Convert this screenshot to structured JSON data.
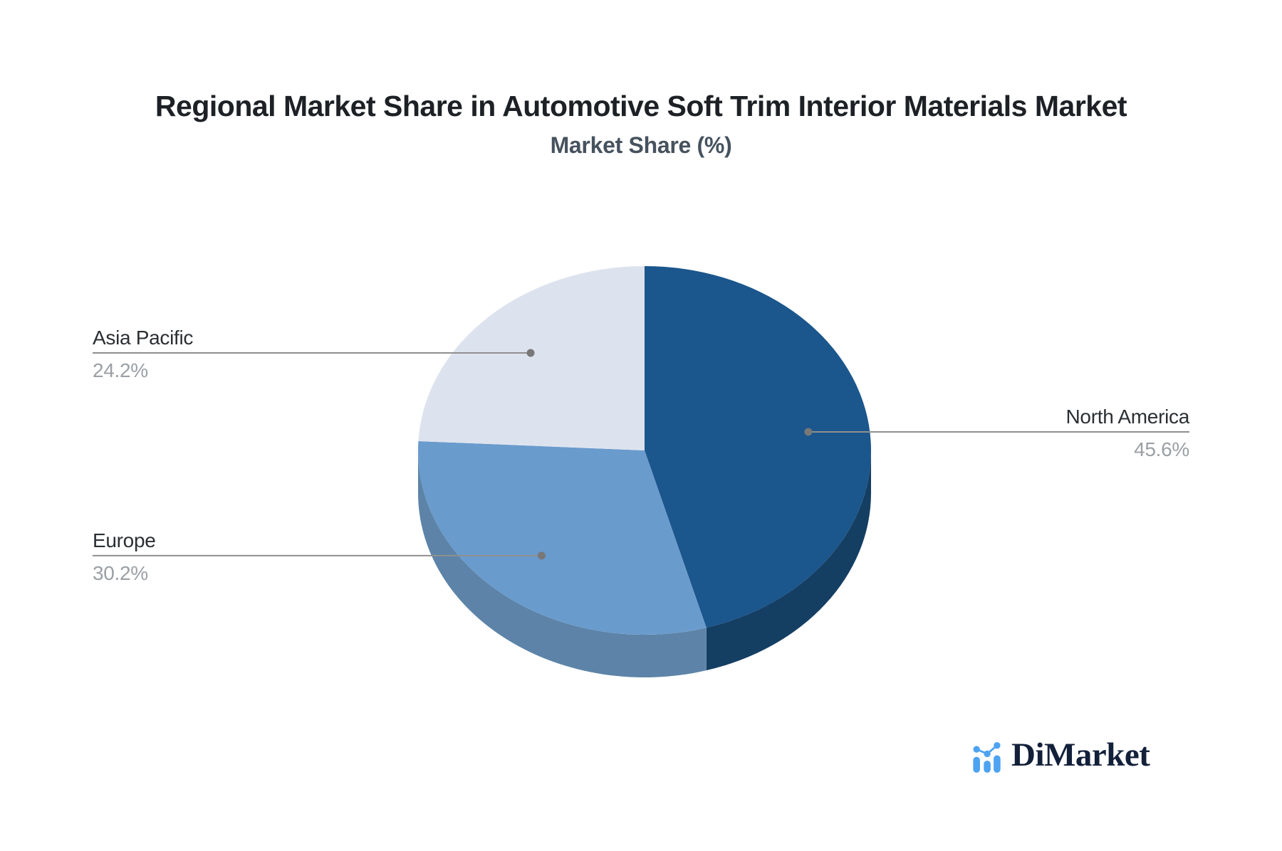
{
  "page": {
    "background": "#ffffff"
  },
  "chart_data": {
    "type": "pie",
    "style": "3d-pie",
    "title": "Regional Market Share in Automotive Soft Trim Interior Materials Market",
    "subtitle": "Market Share (%)",
    "unit": "%",
    "start_angle_deg": 0,
    "direction": "clockwise",
    "legend_position": "none",
    "slices": [
      {
        "label": "North America",
        "value": 45.6,
        "display": "45.6%",
        "color": "#1b568c",
        "side_color": "#153e63",
        "label_side": "right"
      },
      {
        "label": "Europe",
        "value": 30.2,
        "display": "30.2%",
        "color": "#6a9bcd",
        "side_color": "#5d84a8",
        "label_side": "left"
      },
      {
        "label": "Asia Pacific",
        "value": 24.2,
        "display": "24.2%",
        "color": "#dde3ee",
        "side_color": "#b9c6d8",
        "label_side": "left"
      }
    ],
    "leader_line_color": "#8f8f8f",
    "leader_dot_color": "#787878",
    "title_color": "#1d2126",
    "subtitle_color": "#46525e",
    "label_text_color": "#2b2f33",
    "value_text_color": "#9aa0a5"
  },
  "branding": {
    "logo_text": "DiMarket",
    "logo_icon": "bar-line-chart-icon",
    "logo_text_color": "#13203a",
    "logo_accent_color": "#4da3f1"
  }
}
